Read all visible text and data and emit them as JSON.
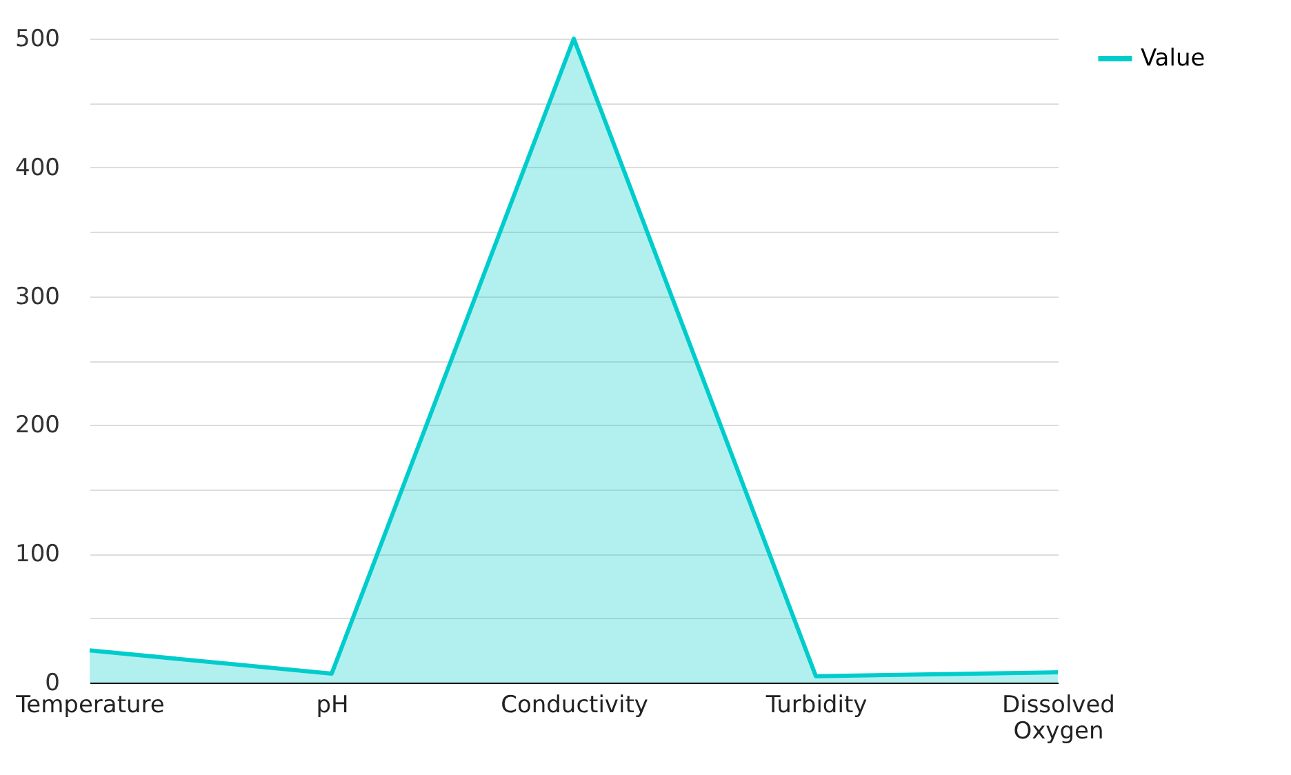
{
  "chart_data": {
    "type": "area",
    "categories": [
      "Temperature",
      "pH",
      "Conductivity",
      "Turbidity",
      "Dissolved Oxygen"
    ],
    "series": [
      {
        "name": "Value",
        "color": "#00cccc",
        "values": [
          25,
          7,
          500,
          5,
          8
        ]
      }
    ],
    "ylim": [
      0,
      500
    ],
    "yticks": [
      0,
      {
        "value": 50,
        "label": null
      },
      100,
      {
        "value": 150,
        "label": null
      },
      200,
      {
        "value": 250,
        "label": null
      },
      300,
      {
        "value": 350,
        "label": null
      },
      400,
      {
        "value": 450,
        "label": null
      },
      500
    ],
    "grid": "y",
    "legend": "top right"
  }
}
